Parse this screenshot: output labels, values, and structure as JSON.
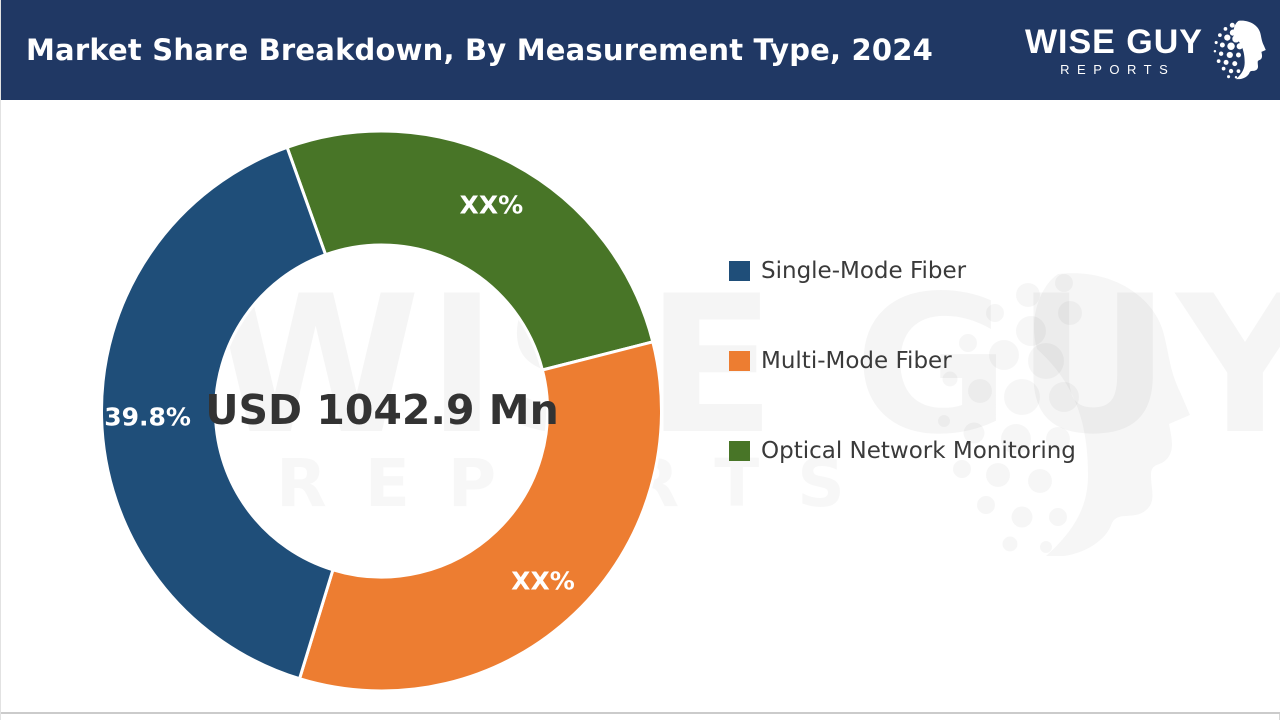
{
  "header": {
    "title": "Market Share Breakdown, By Measurement Type, 2024",
    "bg_color": "#203864",
    "logo": {
      "line1": "WISE GUY",
      "line2": "REPORTS"
    }
  },
  "chart_data": {
    "type": "pie",
    "subtype": "donut",
    "title": "Market Share Breakdown, By Measurement Type, 2024",
    "center_label": "USD 1042.9 Mn",
    "start_angle_deg_from_top": -19.7,
    "direction": "clockwise",
    "inner_radius_ratio": 0.593,
    "separator_color": "#ffffff",
    "slice_label_color": "#ffffff",
    "segments": [
      {
        "name": "Optical Network Monitoring",
        "display_label": "XX%",
        "percent_estimate": 26.5,
        "color": "#487527"
      },
      {
        "name": "Multi-Mode Fiber",
        "display_label": "XX%",
        "percent_estimate": 33.7,
        "color": "#ED7D31"
      },
      {
        "name": "Single-Mode Fiber",
        "display_label": "39.8%",
        "percent_estimate": 39.8,
        "color": "#1F4E79"
      }
    ],
    "legend": {
      "position": "right",
      "items": [
        {
          "label": "Single-Mode Fiber",
          "color": "#1F4E79"
        },
        {
          "label": "Multi-Mode Fiber",
          "color": "#ED7D31"
        },
        {
          "label": "Optical Network Monitoring",
          "color": "#487527"
        }
      ]
    }
  },
  "watermark": {
    "line1": "WISE GUY",
    "line2": "REPORTS"
  }
}
